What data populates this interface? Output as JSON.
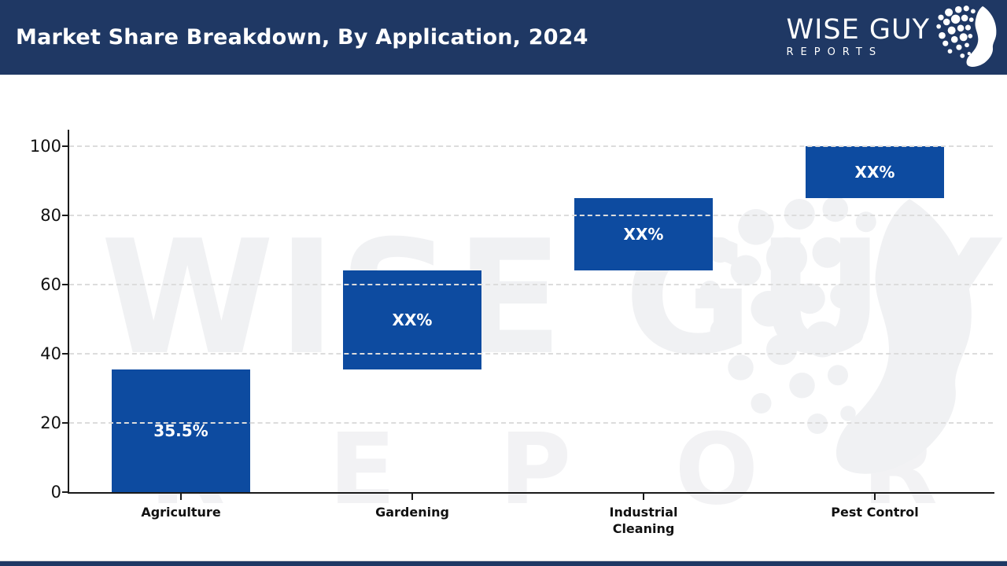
{
  "header": {
    "title": "Market Share Breakdown, By Application, 2024",
    "logo": {
      "line1": "WISE GUY",
      "line2": "REPORTS"
    }
  },
  "watermark": {
    "line1": "WISE GUY",
    "line2": "R E P O R T S"
  },
  "chart_data": {
    "type": "bar",
    "subtype": "waterfall",
    "title": "Market Share Breakdown, By Application, 2024",
    "xlabel": "",
    "ylabel": "",
    "ylim": [
      0,
      100
    ],
    "yticks": [
      0,
      20,
      40,
      60,
      80,
      100
    ],
    "grid": "horizontal-dashed",
    "legend": "none",
    "bar_color": "#0d4ba0",
    "value_label_color": "#ffffff",
    "categories": [
      "Agriculture",
      "Gardening",
      "Industrial Cleaning",
      "Pest Control"
    ],
    "bars": [
      {
        "category": "Agriculture",
        "start": 0,
        "end": 35.5,
        "label": "35.5%"
      },
      {
        "category": "Gardening",
        "start": 35.5,
        "end": 64,
        "label": "XX%"
      },
      {
        "category": "Industrial Cleaning",
        "start": 64,
        "end": 85,
        "label": "XX%"
      },
      {
        "category": "Pest Control",
        "start": 85,
        "end": 100,
        "label": "XX%"
      }
    ]
  },
  "colors": {
    "header_bg": "#1f3864",
    "footer_bg": "#1f3864",
    "bar": "#0d4ba0",
    "gridline": "#dcdcdc",
    "axis": "#1a1a1a",
    "watermark": "#f0f1f3"
  }
}
